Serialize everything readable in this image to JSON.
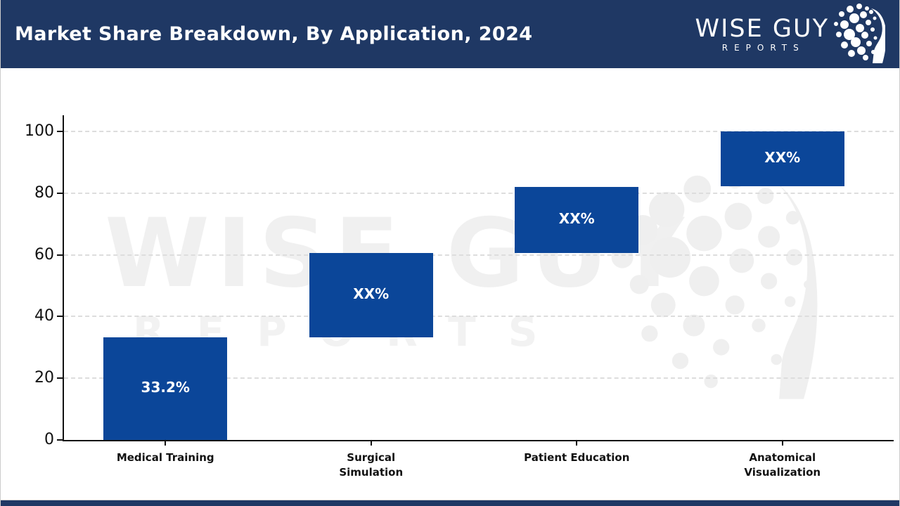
{
  "header": {
    "title": "Market Share Breakdown, By Application, 2024",
    "logo": {
      "line1": "WISE GUY",
      "line2": "REPORTS"
    },
    "bg_color": "#1f3864",
    "text_color": "#ffffff"
  },
  "watermark": {
    "line1": "WISE GUY",
    "line2": "REPORTS"
  },
  "chart_data": {
    "type": "bar",
    "subtype": "waterfall-stacked-segments",
    "title": "Market Share Breakdown, By Application, 2024",
    "categories": [
      "Medical Training",
      "Surgical Simulation",
      "Patient Education",
      "Anatomical Visualization"
    ],
    "category_lines": [
      [
        "Medical Training"
      ],
      [
        "Surgical",
        "Simulation"
      ],
      [
        "Patient Education"
      ],
      [
        "Anatomical",
        "Visualization"
      ]
    ],
    "segments": [
      {
        "category": "Medical Training",
        "start": 0,
        "end": 33.2,
        "value_label": "33.2%"
      },
      {
        "category": "Surgical Simulation",
        "start": 33.2,
        "end": 60.5,
        "value_label": "XX%"
      },
      {
        "category": "Patient Education",
        "start": 60.6,
        "end": 82.1,
        "value_label": "XX%"
      },
      {
        "category": "Anatomical Visualization",
        "start": 82.2,
        "end": 100,
        "value_label": "XX%"
      }
    ],
    "xlabel": "",
    "ylabel": "",
    "ylim": [
      0,
      100
    ],
    "yticks": [
      0,
      20,
      40,
      60,
      80,
      100
    ],
    "grid": "horizontal-dashed",
    "legend": "none",
    "bar_color": "#0b4699",
    "bar_label_color": "#ffffff"
  }
}
